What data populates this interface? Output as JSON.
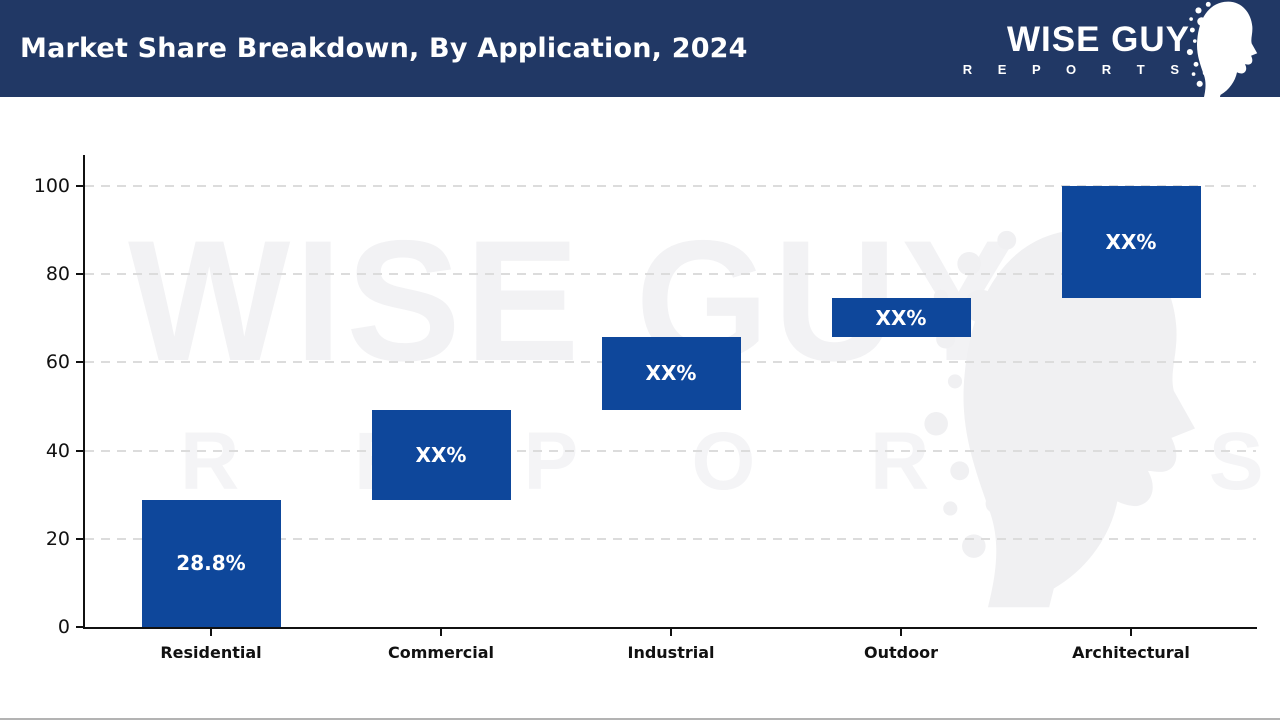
{
  "header": {
    "title": "Market Share Breakdown, By Application, 2024",
    "bg_color": "#213865",
    "logo": {
      "line1": "WISE GUY",
      "line2": "R E P O R T S"
    }
  },
  "watermark": {
    "line1": "WISE GUY",
    "line2": "R E P O R T S"
  },
  "chart_data": {
    "type": "bar",
    "subtype": "waterfall",
    "title": "Market Share Breakdown, By Application, 2024",
    "categories": [
      "Residential",
      "Commercial",
      "Industrial",
      "Outdoor",
      "Architectural"
    ],
    "segments": [
      {
        "category": "Residential",
        "start": 0,
        "end": 28.8,
        "label": "28.8%"
      },
      {
        "category": "Commercial",
        "start": 28.8,
        "end": 49.2,
        "label": "XX%"
      },
      {
        "category": "Industrial",
        "start": 49.2,
        "end": 65.8,
        "label": "XX%"
      },
      {
        "category": "Outdoor",
        "start": 65.8,
        "end": 74.5,
        "label": "XX%"
      },
      {
        "category": "Architectural",
        "start": 74.5,
        "end": 100,
        "label": "XX%"
      }
    ],
    "xlabel": "",
    "ylabel": "",
    "ylim": [
      0,
      100
    ],
    "yticks": [
      0,
      20,
      40,
      60,
      80,
      100
    ],
    "grid": "horizontal-dashed",
    "legend": "none",
    "bar_color": "#0e479b",
    "bar_label_color": "#ffffff",
    "axis_color": "#111111",
    "gridline_color": "#dcdcdc"
  }
}
